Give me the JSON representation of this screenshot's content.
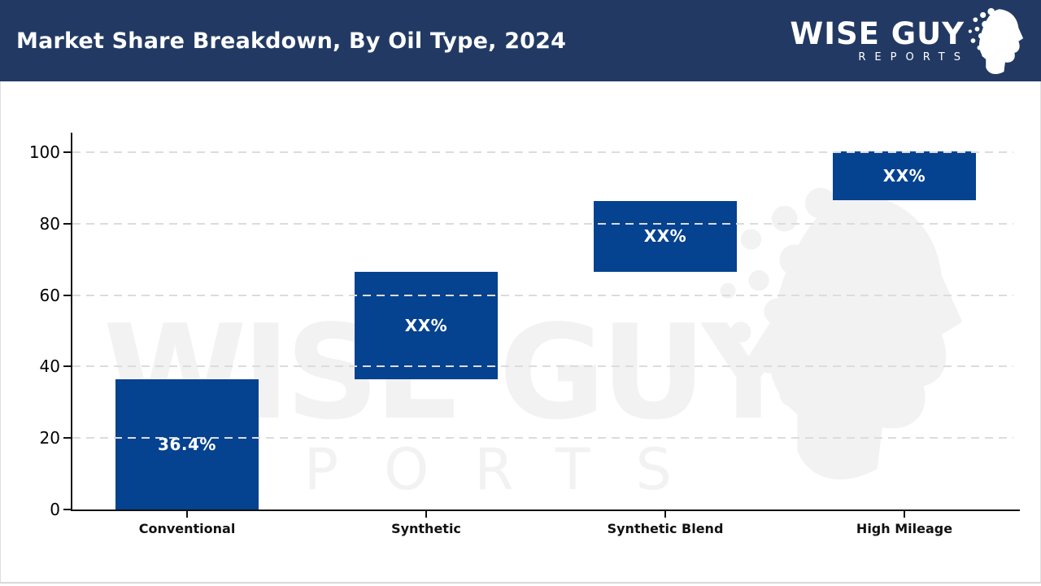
{
  "header": {
    "title": "Market Share Breakdown, By Oil Type, 2024",
    "background": "#223A63",
    "logo": {
      "line1": "WISE GUY",
      "line2": "REPORTS",
      "head_icon": "dotted-head-profile"
    }
  },
  "watermark": {
    "line1": "WISE GUY",
    "line2": "REPORTS",
    "head_icon": "dotted-head-profile",
    "color": "#F2F2F2"
  },
  "chart_data": {
    "type": "bar",
    "subtype": "waterfall",
    "title": "Market Share Breakdown, By Oil Type, 2024",
    "categories": [
      "Conventional",
      "Synthetic",
      "Synthetic Blend",
      "High Mileage"
    ],
    "segments": [
      {
        "category": "Conventional",
        "start": 0,
        "end": 36.4,
        "label": "36.4%"
      },
      {
        "category": "Synthetic",
        "start": 36.4,
        "end": 66.6,
        "label": "XX%"
      },
      {
        "category": "Synthetic Blend",
        "start": 66.6,
        "end": 86.3,
        "label": "XX%"
      },
      {
        "category": "High Mileage",
        "start": 86.5,
        "end": 100.2,
        "label": "XX%"
      }
    ],
    "y_ticks": [
      0,
      20,
      40,
      60,
      80,
      100
    ],
    "ylim": [
      0,
      105.5
    ],
    "xlabel": "",
    "ylabel": "",
    "grid": "horizontal-dashed",
    "legend": "none",
    "bar_color": "#05428F",
    "grid_color": "#DCDCDC"
  }
}
